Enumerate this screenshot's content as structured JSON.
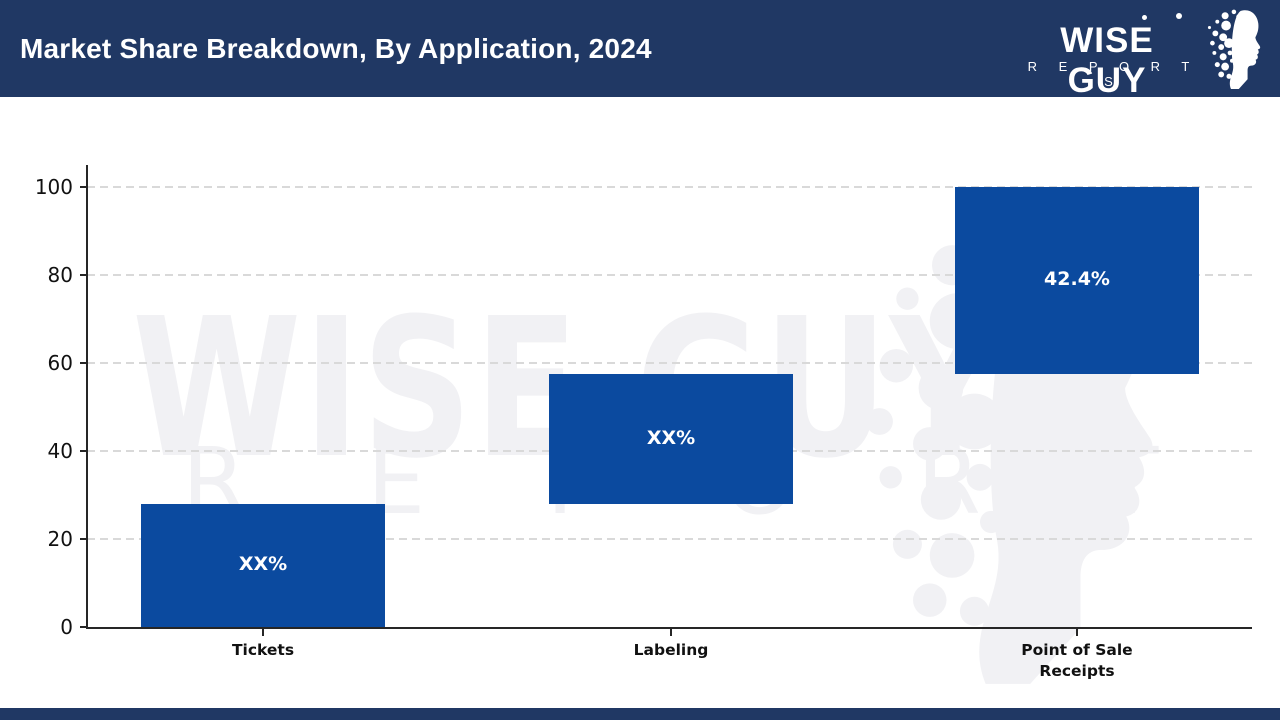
{
  "header": {
    "title": "Market Share Breakdown, By Application, 2024",
    "bg_color": "#203864",
    "logo": {
      "line1": "WISE GUY",
      "line2": "R E P O R T S"
    }
  },
  "watermark": {
    "line1": "WISE GUY",
    "line2": "R E P O R T S"
  },
  "chart_data": {
    "type": "bar",
    "subtype": "waterfall",
    "title": "Market Share Breakdown, By Application, 2024",
    "categories": [
      "Tickets",
      "Labeling",
      "Point of Sale Receipts"
    ],
    "segments": [
      {
        "category": "Tickets",
        "start": 0,
        "end": 28,
        "value_label": "XX%"
      },
      {
        "category": "Labeling",
        "start": 28,
        "end": 57.6,
        "value_label": "XX%"
      },
      {
        "category": "Point of Sale Receipts",
        "start": 57.6,
        "end": 100,
        "value_label": "42.4%"
      }
    ],
    "yticks": [
      0,
      20,
      40,
      60,
      80,
      100
    ],
    "ylim": [
      0,
      105
    ],
    "xlabel": "",
    "ylabel": "",
    "legend": "none",
    "grid": "horizontal-dashed",
    "bar_color": "#0b4a9f",
    "grid_color": "#d9d9d9",
    "axis_color": "#262626"
  },
  "footer": {
    "bg_color": "#203864"
  }
}
